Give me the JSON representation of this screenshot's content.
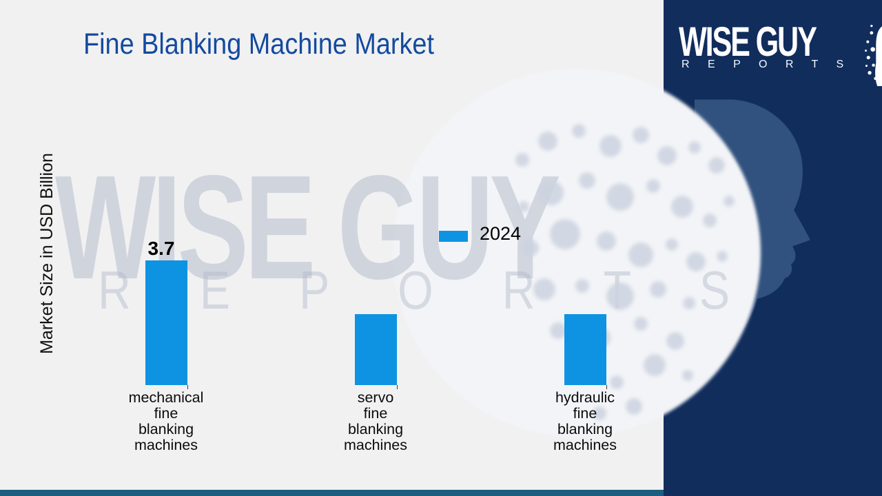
{
  "title": "Fine Blanking Machine Market",
  "brand": {
    "logo_line1": "WISE GUY",
    "logo_line2": "R E P O R T S",
    "watermark_line1": "WISE GUY",
    "watermark_line2": "R E P O R T S"
  },
  "legend": {
    "year_label": "2024",
    "swatch_color": "#0e93e2"
  },
  "chart_data": {
    "type": "bar",
    "title": "Fine Blanking Machine Market",
    "ylabel": "Market Size in USD Billion",
    "xlabel": "",
    "categories": [
      "mechanical fine blanking machines",
      "servo fine blanking machines",
      "hydraulic fine blanking machines"
    ],
    "categories_lines": [
      [
        "mechanical",
        "fine",
        "blanking",
        "machines"
      ],
      [
        "servo",
        "fine",
        "blanking",
        "machines"
      ],
      [
        "hydraulic",
        "fine",
        "blanking",
        "machines"
      ]
    ],
    "series": [
      {
        "name": "2024",
        "values": [
          3.7,
          2.1,
          2.1
        ]
      }
    ],
    "data_labels": [
      "3.7",
      "",
      ""
    ],
    "bar_color": "#0e93e2",
    "ylim": [
      0,
      4
    ],
    "grid": false,
    "legend_position": "upper-center-right"
  },
  "colors": {
    "background": "#f1f1f2",
    "title": "#134a9e",
    "bar": "#0e93e2",
    "panel_navy": "#112d5c",
    "panel_face": "#31517e",
    "bottom_strip": "#1b5e80",
    "watermark": "#ccd3e0"
  }
}
